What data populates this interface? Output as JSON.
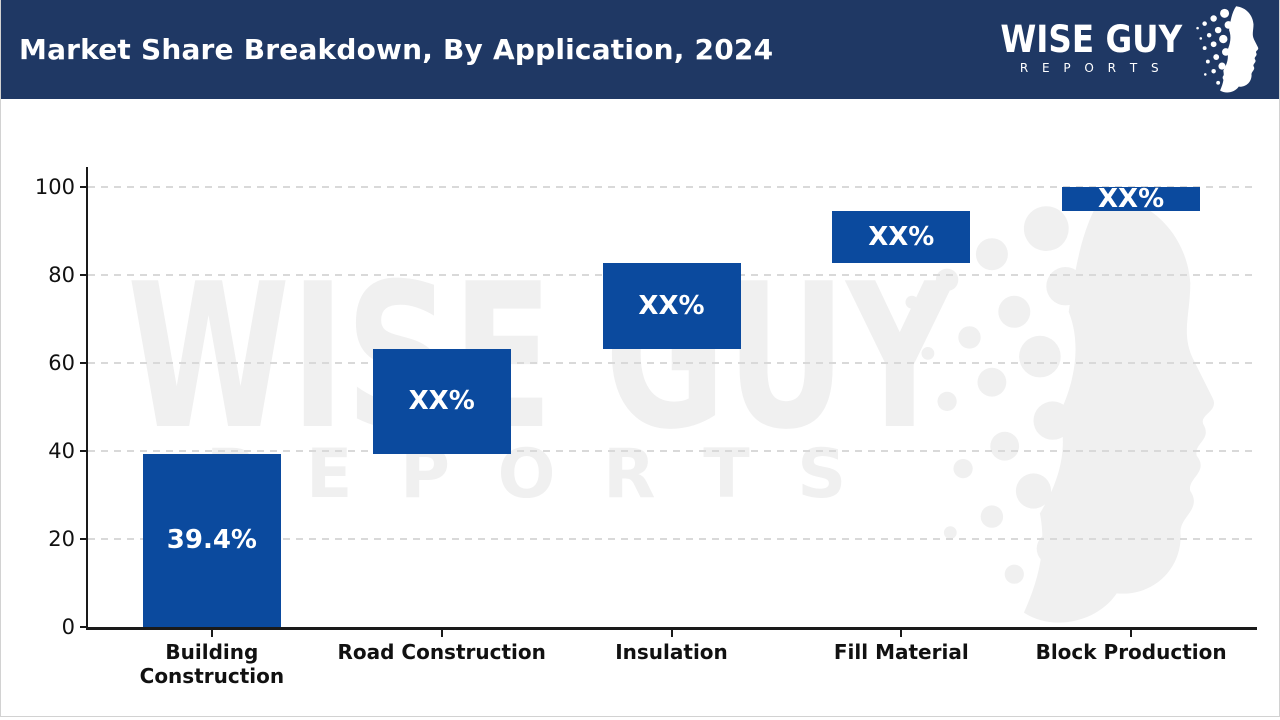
{
  "header": {
    "title": "Market Share Breakdown, By Application, 2024",
    "logo": {
      "name": "WISE GUY",
      "subtitle": "R E P O R T S"
    }
  },
  "watermark": {
    "line1": "WISE GUY",
    "line2": "R E P O R T S"
  },
  "colors": {
    "header_bg": "#1f3864",
    "bar": "#0b4a9e",
    "bar_label": "#ffffff",
    "grid": "#d9d9d9",
    "axis": "#1a1a1a",
    "tick_label": "#111111",
    "watermark": "#f0f0f0"
  },
  "chart_data": {
    "type": "bar",
    "subtype": "waterfall",
    "title": "Market Share Breakdown, By Application, 2024",
    "unit": "%",
    "categories": [
      "Building\nConstruction",
      "Road Construction",
      "Insulation",
      "Fill Material",
      "Block Production"
    ],
    "segments": [
      {
        "category": "Building Construction",
        "start": 0,
        "end": 39.4,
        "label": "39.4%"
      },
      {
        "category": "Road Construction",
        "start": 39.4,
        "end": 63.2,
        "label": "XX%"
      },
      {
        "category": "Insulation",
        "start": 63.2,
        "end": 82.7,
        "label": "XX%"
      },
      {
        "category": "Fill Material",
        "start": 82.7,
        "end": 94.5,
        "label": "XX%"
      },
      {
        "category": "Block Production",
        "start": 94.5,
        "end": 99.9,
        "label": "XX%"
      }
    ],
    "yticks": [
      0,
      20,
      40,
      60,
      80,
      100
    ],
    "ylim": [
      0,
      104.5
    ],
    "xlabel": "",
    "ylabel": "",
    "grid": "horizontal-dashed",
    "legend": "none"
  }
}
